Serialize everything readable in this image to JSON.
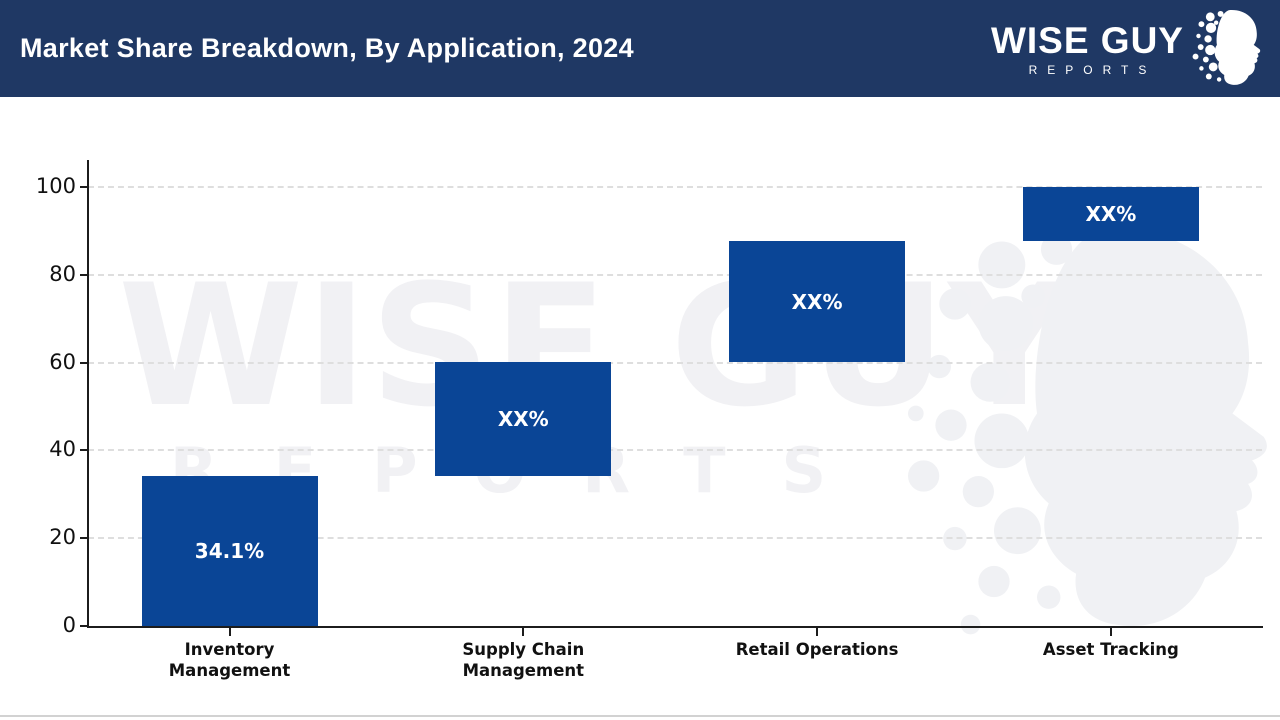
{
  "header": {
    "title": "Market Share Breakdown, By Application, 2024",
    "bg_color": "#1F3864",
    "logo": {
      "line1": "WISE GUY",
      "line2": "REPORTS"
    }
  },
  "watermark": {
    "line1": "WISE GUY",
    "line2": "REPORTS"
  },
  "chart_data": {
    "type": "bar",
    "subtype": "stacked-waterfall",
    "title": "Market Share Breakdown, By Application, 2024",
    "categories": [
      "Inventory Management",
      "Supply Chain Management",
      "Retail Operations",
      "Asset Tracking"
    ],
    "segments": [
      {
        "category": "Inventory Management",
        "label": "34.1%",
        "start": 0,
        "end": 34.1
      },
      {
        "category": "Supply Chain Management",
        "label": "XX%",
        "start": 34.1,
        "end": 60.2
      },
      {
        "category": "Retail Operations",
        "label": "XX%",
        "start": 60.2,
        "end": 87.6
      },
      {
        "category": "Asset Tracking",
        "label": "XX%",
        "start": 87.6,
        "end": 100
      }
    ],
    "xlabel": "",
    "ylabel": "",
    "yticks": [
      0,
      20,
      40,
      60,
      80,
      100
    ],
    "ylim": [
      0,
      105
    ],
    "grid": "horizontal-dashed",
    "legend": "none",
    "bar_color": "#0A4596",
    "bar_label_color": "#ffffff"
  }
}
